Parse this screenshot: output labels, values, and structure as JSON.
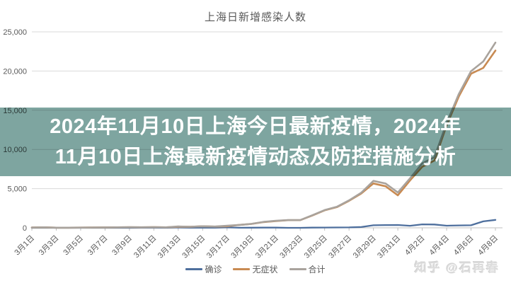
{
  "overlay": {
    "line1": "2024年11月10日上海今日最新疫情，2024年",
    "line2": "11月10日上海最新疫情动态及防控措施分析",
    "background_color": "#7EA5A0",
    "text_color": "#FFFFFF"
  },
  "watermark": {
    "text": "知乎 @石再春"
  },
  "chart_data": {
    "type": "line",
    "title": "上海日新增感染人数",
    "x": [
      "3月1日",
      "3月2日",
      "3月3日",
      "3月4日",
      "3月5日",
      "3月6日",
      "3月7日",
      "3月8日",
      "3月9日",
      "3月10日",
      "3月11日",
      "3月12日",
      "3月13日",
      "3月14日",
      "3月15日",
      "3月16日",
      "3月17日",
      "3月18日",
      "3月19日",
      "3月20日",
      "3月21日",
      "3月22日",
      "3月23日",
      "3月24日",
      "3月25日",
      "3月26日",
      "3月27日",
      "3月28日",
      "3月29日",
      "3月30日",
      "3月31日",
      "4月1日",
      "4月2日",
      "4月3日",
      "4月4日",
      "4月5日",
      "4月6日",
      "4月7日",
      "4月8日"
    ],
    "x_tick_step": 2,
    "y_ticks": [
      0,
      5000,
      10000,
      15000,
      20000,
      25000
    ],
    "y_tick_labels": [
      "0",
      "5,000",
      "10,000",
      "15,000",
      "20,000",
      "25,000"
    ],
    "ylim": [
      0,
      25000
    ],
    "grid": true,
    "legend_position": "bottom",
    "series": [
      {
        "name": "确诊",
        "color": "#4E6F9D",
        "values": [
          1,
          3,
          2,
          3,
          0,
          3,
          4,
          3,
          4,
          11,
          5,
          1,
          41,
          9,
          5,
          8,
          57,
          8,
          17,
          24,
          31,
          4,
          4,
          29,
          38,
          45,
          50,
          96,
          326,
          355,
          358,
          260,
          438,
          425,
          268,
          311,
          322,
          824,
          1015
        ]
      },
      {
        "name": "无症状",
        "color": "#C88A52",
        "values": [
          45,
          62,
          14,
          16,
          28,
          45,
          51,
          62,
          76,
          64,
          78,
          64,
          128,
          130,
          197,
          150,
          203,
          366,
          492,
          734,
          865,
          977,
          979,
          1580,
          2231,
          2631,
          3450,
          4381,
          5656,
          5298,
          4144,
          6051,
          7788,
          8581,
          13086,
          16766,
          19660,
          20398,
          22609
        ]
      },
      {
        "name": "合计",
        "color": "#A9A39D",
        "values": [
          46,
          65,
          16,
          19,
          28,
          48,
          55,
          65,
          80,
          75,
          83,
          65,
          169,
          139,
          202,
          158,
          260,
          374,
          509,
          758,
          896,
          981,
          983,
          1609,
          2269,
          2676,
          3500,
          4477,
          5982,
          5653,
          4502,
          6311,
          8226,
          9006,
          13354,
          17077,
          19982,
          21222,
          23624
        ]
      }
    ]
  }
}
